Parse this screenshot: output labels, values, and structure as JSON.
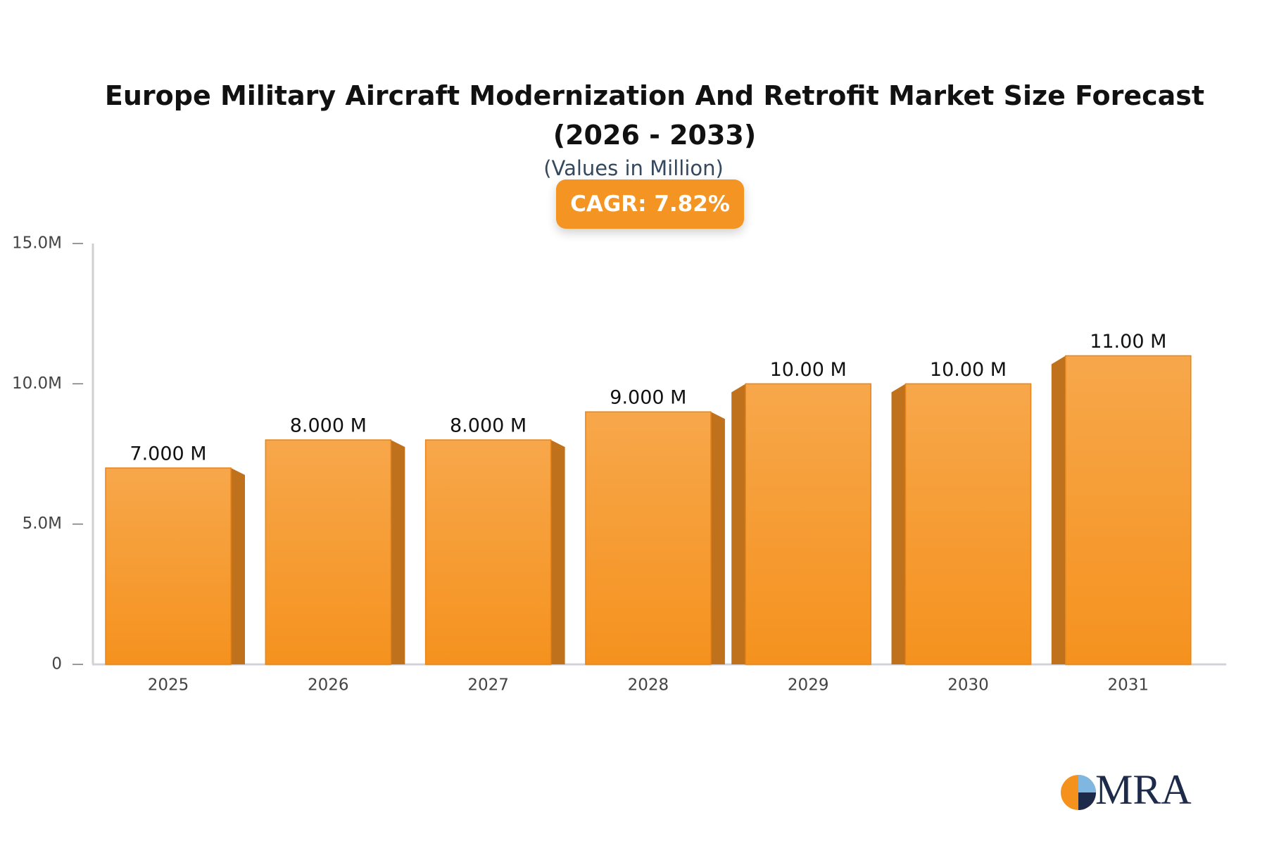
{
  "chart_data": {
    "type": "bar",
    "title": "Europe Military Aircraft Modernization And Retrofit Market Size Forecast (2026 - 2033)",
    "subtitle": "(Values in Million)",
    "annotation": "CAGR: 7.82%",
    "categories": [
      "2025",
      "2026",
      "2027",
      "2028",
      "2029",
      "2030",
      "2031"
    ],
    "values": [
      7,
      8,
      8,
      9,
      10,
      10,
      11
    ],
    "value_labels": [
      "7.000 M",
      "8.000 M",
      "8.000 M",
      "9.000 M",
      "10.00 M",
      "10.00 M",
      "11.00 M"
    ],
    "color": "#f5961f",
    "ylim": [
      0,
      15
    ],
    "yticks": [
      0,
      {
        "value": 5,
        "label": "5.0M"
      },
      {
        "value": 10,
        "label": "10.0M"
      },
      {
        "value": 15,
        "label": "15.0M"
      }
    ],
    "grid": false
  },
  "logo": "MRA"
}
